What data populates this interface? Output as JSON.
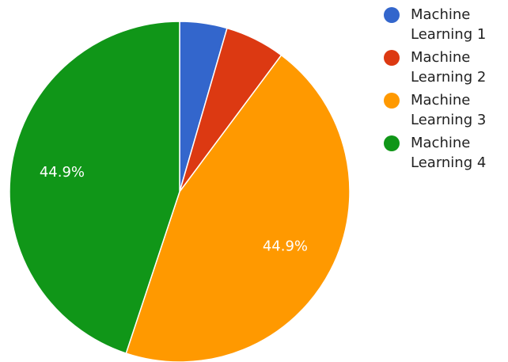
{
  "chart_data": {
    "type": "pie",
    "categories": [
      "Machine Learning 1",
      "Machine Learning 2",
      "Machine Learning 3",
      "Machine Learning 4"
    ],
    "values": [
      4.5,
      5.7,
      44.9,
      44.9
    ],
    "value_labels": [
      null,
      null,
      "44.9%",
      "44.9%"
    ],
    "colors": [
      "#3366cc",
      "#dc3912",
      "#ff9900",
      "#109618"
    ],
    "legend": "right"
  }
}
